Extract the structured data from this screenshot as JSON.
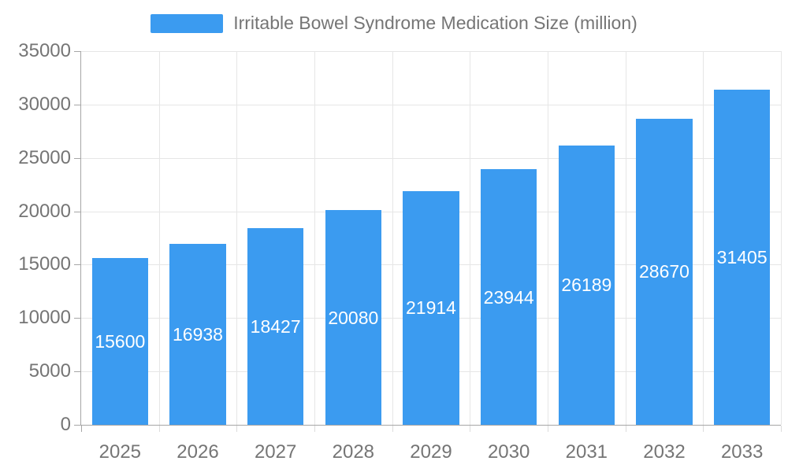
{
  "chart_data": {
    "type": "bar",
    "title": "",
    "legend": "Irritable Bowel Syndrome Medication Size (million)",
    "categories": [
      "2025",
      "2026",
      "2027",
      "2028",
      "2029",
      "2030",
      "2031",
      "2032",
      "2033"
    ],
    "series": [
      {
        "name": "Irritable Bowel Syndrome Medication Size (million)",
        "values": [
          15600,
          16938,
          18427,
          20080,
          21914,
          23944,
          26189,
          28670,
          31405
        ]
      }
    ],
    "xlabel": "",
    "ylabel": "",
    "ylim": [
      0,
      35000
    ],
    "yticks": [
      0,
      5000,
      10000,
      15000,
      20000,
      25000,
      30000,
      35000
    ],
    "grid": true,
    "legend_position": "top-center",
    "bar_labels_inside": true,
    "colors": {
      "bar": "#3b9bf0",
      "grid": "#e6e6e6",
      "axis": "#a6a6a6",
      "boundary_tick": "#dcdcdc",
      "text": "#757575",
      "bar_label": "#ffffff",
      "background": "#ffffff"
    }
  }
}
